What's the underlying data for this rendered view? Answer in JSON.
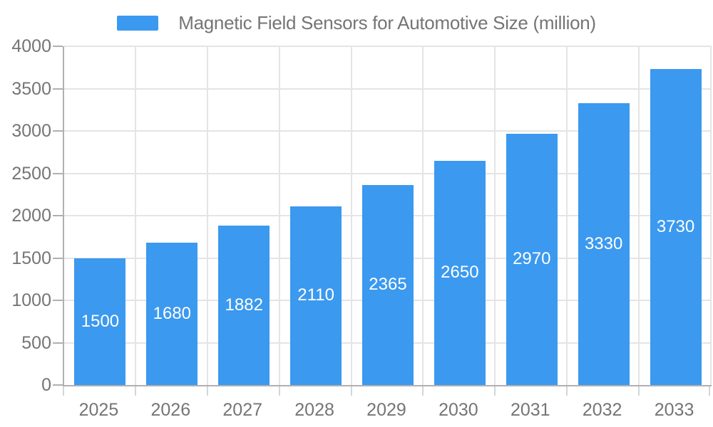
{
  "chart_data": {
    "type": "bar",
    "title": "Magnetic Field Sensors for Automotive Size (million)",
    "legend_entries": [
      "Magnetic Field Sensors for Automotive Size (million)"
    ],
    "legend_position": "top-center",
    "categories": [
      "2025",
      "2026",
      "2027",
      "2028",
      "2029",
      "2030",
      "2031",
      "2032",
      "2033"
    ],
    "series": [
      {
        "name": "Magnetic Field Sensors for Automotive Size (million)",
        "values": [
          1500,
          1680,
          1882,
          2110,
          2365,
          2650,
          2970,
          3330,
          3730
        ]
      }
    ],
    "bar_value_labels": [
      "1500",
      "1680",
      "1882",
      "2110",
      "2365",
      "2650",
      "2970",
      "3330",
      "3730"
    ],
    "xlabel": "",
    "ylabel": "",
    "ylim": [
      0,
      4000
    ],
    "yticks": [
      0,
      500,
      1000,
      1500,
      2000,
      2500,
      3000,
      3500,
      4000
    ],
    "grid": true,
    "colors": {
      "bar": "#3B99EF",
      "bar_label_text": "#FFFFFF",
      "axis_line": "#B0B0B0",
      "gridline": "#E4E4E4",
      "x_tick": "#D6D6D6",
      "axis_text": "#757575"
    }
  }
}
